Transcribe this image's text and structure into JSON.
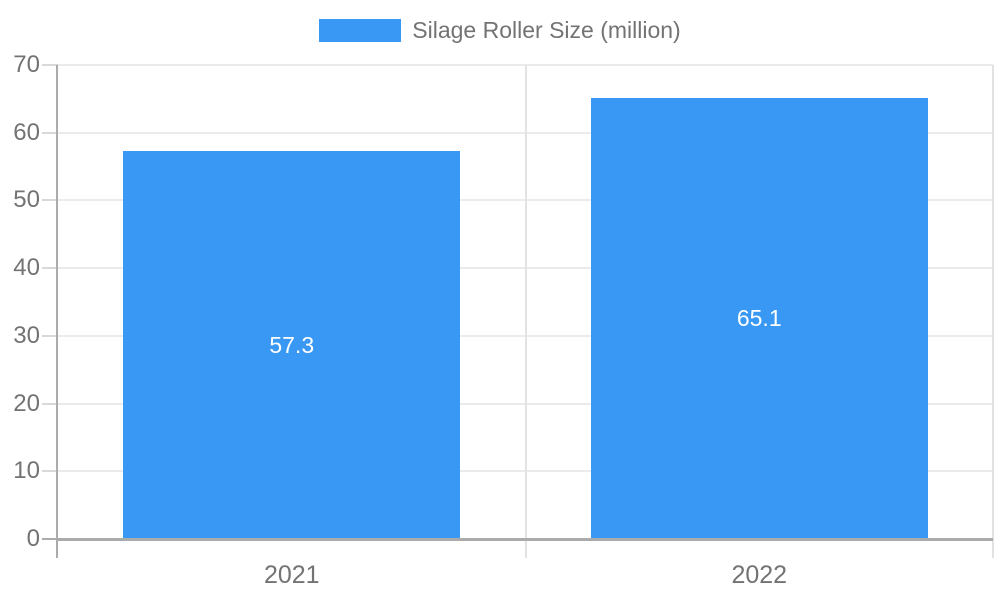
{
  "chart_data": {
    "type": "bar",
    "title": "",
    "legend": {
      "label": "Silage Roller Size (million)",
      "position": "top"
    },
    "categories": [
      "2021",
      "2022"
    ],
    "series": [
      {
        "name": "Silage Roller Size (million)",
        "values": [
          57.3,
          65.1
        ]
      }
    ],
    "value_labels": [
      "57.3",
      "65.1"
    ],
    "ylim": [
      0,
      70
    ],
    "yticks": [
      0,
      10,
      20,
      30,
      40,
      50,
      60,
      70
    ],
    "grid": true,
    "bar_width_fraction": 0.72
  },
  "colors": {
    "bar": "#3898F3",
    "axis_text": "#737373",
    "value_text": "#ffffff",
    "grid_h": "#ebebeb",
    "grid_v": "#e2e2e2",
    "axis_line": "#ababab",
    "tick": "#d9d9d9",
    "background": "#ffffff"
  }
}
